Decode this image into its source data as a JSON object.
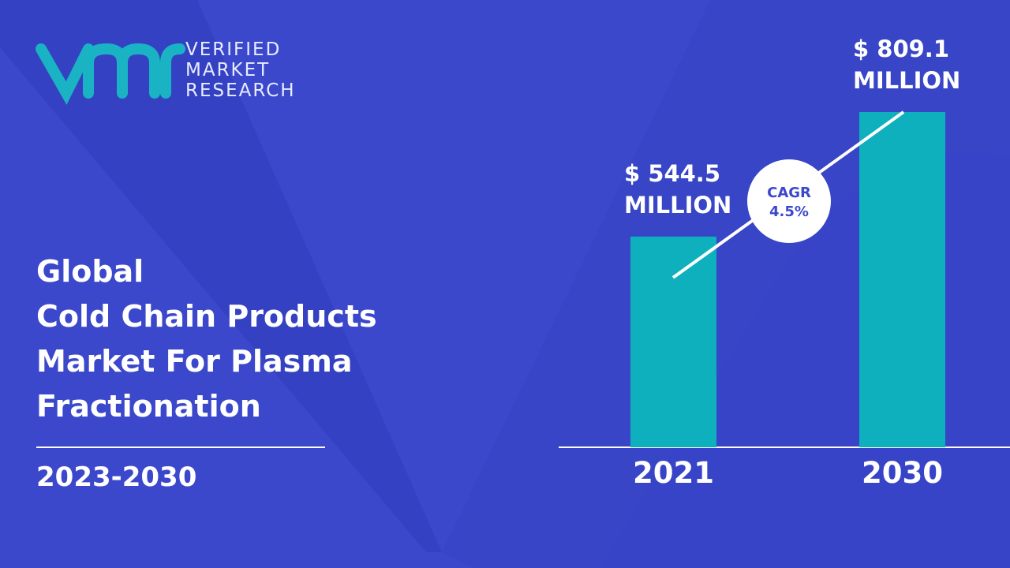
{
  "logo": {
    "text": "VERIFIED\nMARKET\nRESEARCH"
  },
  "chart_data": {
    "type": "bar",
    "title": "Global\nCold Chain Products\nMarket For Plasma\nFractionation",
    "subtitle": "2023-2030",
    "annotation": "CAGR\n4.5%",
    "categories": [
      "2021",
      "2030"
    ],
    "values": [
      544.5,
      809.1
    ],
    "value_labels": [
      "$ 544.5\nMILLION",
      "$ 809.1\nMILLION"
    ],
    "color": "#0fb0bd",
    "ylim": [
      97,
      1000
    ]
  }
}
